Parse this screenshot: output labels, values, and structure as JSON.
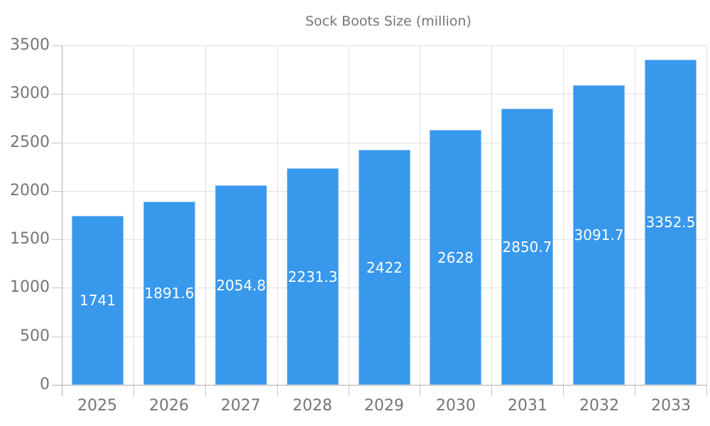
{
  "legend": {
    "label": "Sock Boots Size (million)"
  },
  "chart_data": {
    "type": "bar",
    "title": "Sock Boots Size (million)",
    "categories": [
      "2025",
      "2026",
      "2027",
      "2028",
      "2029",
      "2030",
      "2031",
      "2032",
      "2033"
    ],
    "values": [
      1741,
      1891.6,
      2054.8,
      2231.3,
      2422,
      2628,
      2850.7,
      3091.7,
      3352.5
    ],
    "data_labels": [
      "1741",
      "1891.6",
      "2054.8",
      "2231.3",
      "2422",
      "2628",
      "2850.7",
      "3091.7",
      "3352.5"
    ],
    "xlabel": "",
    "ylabel": "",
    "ylim": [
      0,
      3500
    ],
    "yticks": [
      0,
      500,
      1000,
      1500,
      2000,
      2500,
      3000,
      3500
    ],
    "grid": true,
    "legend_position": "top",
    "colors": {
      "bar": "#3898ec",
      "bar_border": "#8ac0f2",
      "value_label_text": "#ffffff",
      "axis_text": "#757575",
      "gridline": "#e0e0e0",
      "axis_line": "#b0b0b0",
      "background": "#ffffff"
    }
  }
}
